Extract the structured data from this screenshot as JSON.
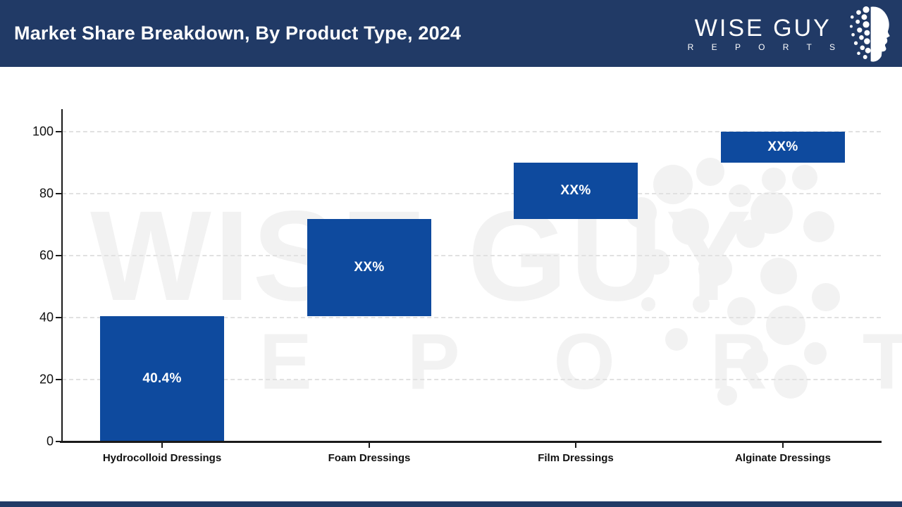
{
  "header": {
    "title": "Market Share Breakdown, By Product Type, 2024",
    "logo": {
      "line1": "WISE GUY",
      "line2": "R E P O R T S"
    }
  },
  "watermark": {
    "line1": "WISE GUY",
    "line2": "R E P O R T S"
  },
  "colors": {
    "header_bg": "#213a66",
    "bar_fill": "#0e4a9e",
    "bar_label": "#ffffff",
    "gridline": "#e1e1e1",
    "axis": "#1a1a1a",
    "watermark": "#f2f2f2",
    "footer_bg": "#213a66"
  },
  "chart_data": {
    "type": "bar",
    "subtype": "waterfall",
    "title": "Market Share Breakdown, By Product Type, 2024",
    "xlabel": "",
    "ylabel": "",
    "ylim": [
      0,
      100
    ],
    "yticks": [
      0,
      20,
      40,
      60,
      80,
      100
    ],
    "grid": "horizontal dashed",
    "legend": "none",
    "categories": [
      "Hydrocolloid Dressings",
      "Foam Dressings",
      "Film Dressings",
      "Alginate Dressings"
    ],
    "segments": [
      {
        "category": "Hydrocolloid Dressings",
        "start": 0,
        "end": 40.4,
        "label": "40.4%"
      },
      {
        "category": "Foam Dressings",
        "start": 40.4,
        "end": 71.8,
        "label": "XX%"
      },
      {
        "category": "Film Dressings",
        "start": 71.8,
        "end": 90,
        "label": "XX%"
      },
      {
        "category": "Alginate Dressings",
        "start": 90,
        "end": 100,
        "label": "XX%"
      }
    ]
  }
}
